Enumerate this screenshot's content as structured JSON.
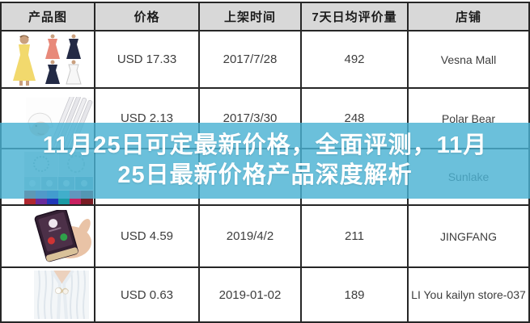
{
  "table": {
    "headers": [
      "产品图",
      "价格",
      "上架时间",
      "7天日均评价量",
      "店铺"
    ],
    "header_keys": [
      "product-image",
      "price",
      "listing-date",
      "avg-7day-reviews",
      "shop"
    ],
    "rows": [
      {
        "image": "dresses-collage",
        "price": "USD 17.33",
        "listed": "2017/7/28",
        "reviews": "492",
        "shop": "Vesna Mall"
      },
      {
        "image": "towel-face-sticks",
        "price": "USD 2.13",
        "listed": "2017/3/30",
        "reviews": "248",
        "shop": "Polar Bear"
      },
      {
        "image": "jewelry-collage",
        "price": "",
        "listed": "",
        "reviews": "",
        "shop": "Sunlake"
      },
      {
        "image": "flip-phone-in-hand",
        "price": "USD 4.59",
        "listed": "2019/4/2",
        "reviews": "211",
        "shop": "JINGFANG"
      },
      {
        "image": "cardigan-pearl-brooch",
        "price": "USD 0.63",
        "listed": "2019-01-02",
        "reviews": "189",
        "shop": "LI You kailyn store-037"
      }
    ]
  },
  "banner": {
    "line1": "11月25日可定最新价格，全面评测，11月",
    "line2": "25日最新价格产品深度解析"
  },
  "colors": {
    "header_bg": "#d8d8d8",
    "table_border": "#262626",
    "cell_text": "#3d3d3d",
    "banner_overlay": "#4ab2d3",
    "banner_text": "#ffffff"
  }
}
